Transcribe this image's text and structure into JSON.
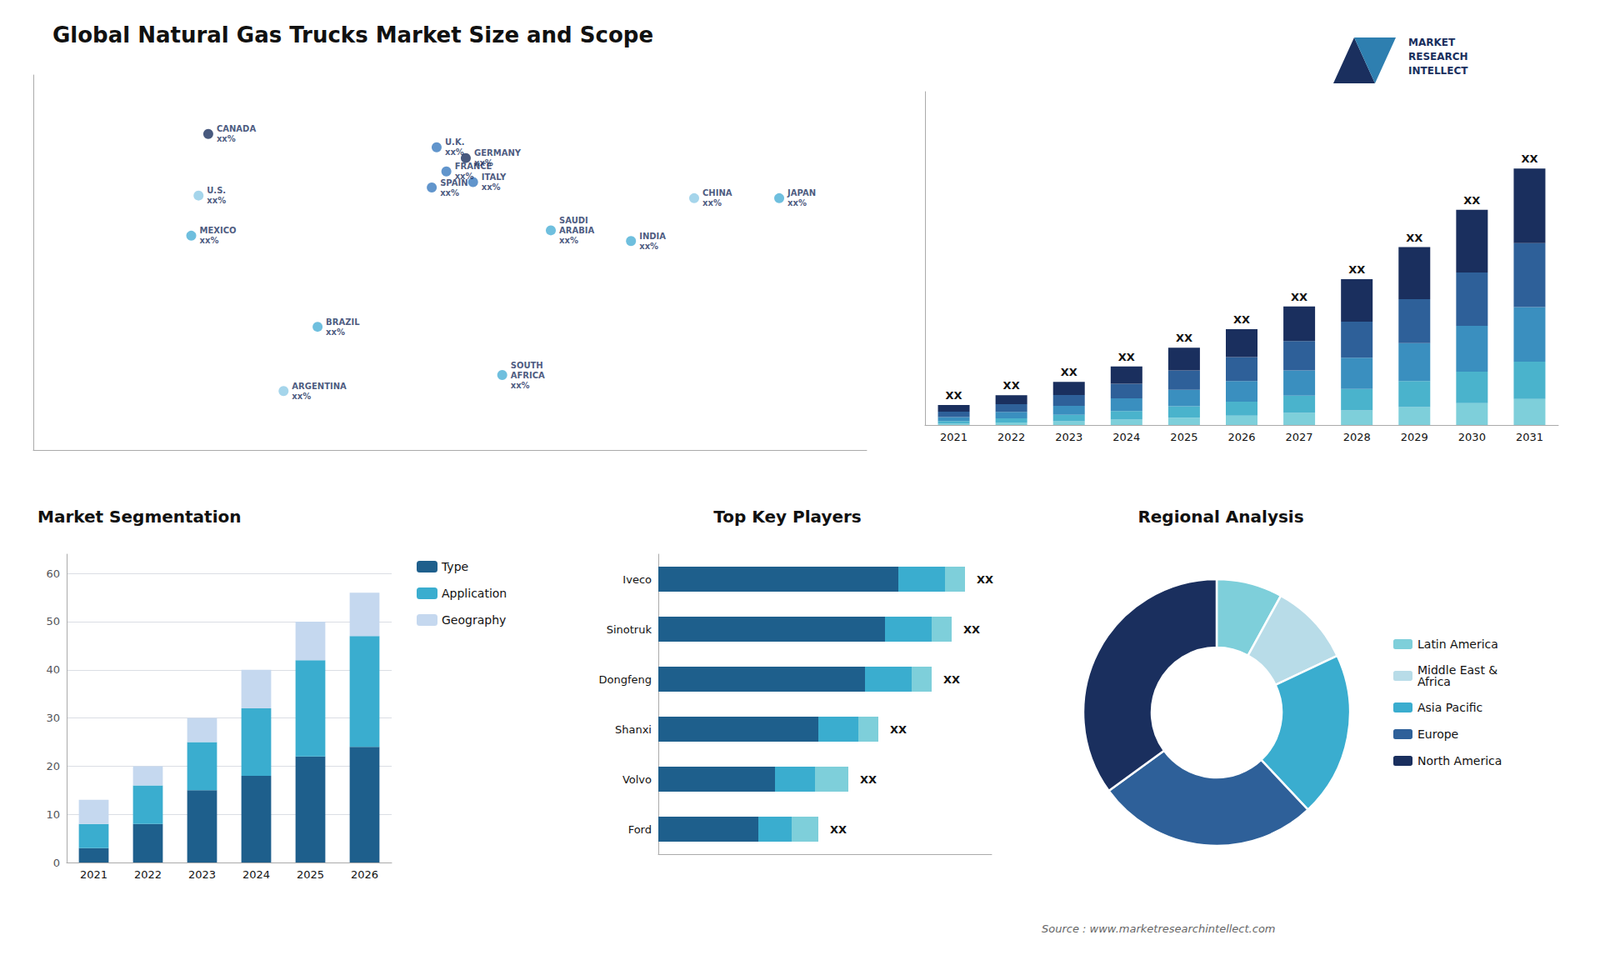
{
  "title": "Global Natural Gas Trucks Market Size and Scope",
  "annotations": [
    "MARKET\nRESEARCH\nINTELLECT",
    "Source : www.marketresearchintellect.com"
  ],
  "chart_data": [
    {
      "type": "scatter",
      "xlim": [
        -168,
        175
      ],
      "ylim": [
        -58,
        82
      ],
      "tick_labels": false,
      "grid": false,
      "annotations": [
        {
          "text": "U.S.\nxx%",
          "x": -100,
          "y": 37,
          "color": "#8ecae6"
        },
        {
          "text": "CANADA\nxx%",
          "x": -96,
          "y": 60,
          "color": "#1a2f5e"
        },
        {
          "text": "MEXICO\nxx%",
          "x": -103,
          "y": 22,
          "color": "#4bafd6"
        },
        {
          "text": "BRAZIL\nxx%",
          "x": -51,
          "y": -12,
          "color": "#4bafd6"
        },
        {
          "text": "ARGENTINA\nxx%",
          "x": -65,
          "y": -36,
          "color": "#8ecae6"
        },
        {
          "text": "U.K.\nxx%",
          "x": -2,
          "y": 55,
          "color": "#3a7abf"
        },
        {
          "text": "FRANCE\nxx%",
          "x": 2,
          "y": 46,
          "color": "#3a7abf"
        },
        {
          "text": "SPAIN\nxx%",
          "x": -4,
          "y": 40,
          "color": "#3a7abf"
        },
        {
          "text": "GERMANY\nxx%",
          "x": 10,
          "y": 51,
          "color": "#1a2f5e"
        },
        {
          "text": "ITALY\nxx%",
          "x": 13,
          "y": 42,
          "color": "#3a7abf"
        },
        {
          "text": "SAUDI\nARABIA\nxx%",
          "x": 45,
          "y": 24,
          "color": "#4bafd6"
        },
        {
          "text": "SOUTH\nAFRICA\nxx%",
          "x": 25,
          "y": -30,
          "color": "#4bafd6"
        },
        {
          "text": "INDIA\nxx%",
          "x": 78,
          "y": 20,
          "color": "#4bafd6"
        },
        {
          "text": "CHINA\nxx%",
          "x": 104,
          "y": 36,
          "color": "#8ecae6"
        },
        {
          "text": "JAPAN\nxx%",
          "x": 139,
          "y": 36,
          "color": "#4bafd6"
        }
      ]
    },
    {
      "type": "bar",
      "stacked": true,
      "categories": [
        "2021",
        "2022",
        "2023",
        "2024",
        "2025",
        "2026",
        "2027",
        "2028",
        "2029",
        "2030",
        "2031"
      ],
      "series": [
        {
          "color": "#7ecfda",
          "values": [
            0.1,
            0.18,
            0.28,
            0.4,
            0.55,
            0.7,
            0.9,
            1.1,
            1.35,
            1.65,
            1.95
          ]
        },
        {
          "color": "#4ab3cc",
          "values": [
            0.2,
            0.32,
            0.48,
            0.65,
            0.85,
            1.05,
            1.3,
            1.6,
            1.95,
            2.35,
            2.8
          ]
        },
        {
          "color": "#3a8fbf",
          "values": [
            0.3,
            0.48,
            0.68,
            0.95,
            1.25,
            1.55,
            1.9,
            2.35,
            2.85,
            3.45,
            4.1
          ]
        },
        {
          "color": "#2e6099",
          "values": [
            0.4,
            0.58,
            0.82,
            1.1,
            1.45,
            1.8,
            2.2,
            2.7,
            3.3,
            4.0,
            4.8
          ]
        },
        {
          "color": "#1a2f5e",
          "values": [
            0.5,
            0.68,
            0.97,
            1.3,
            1.7,
            2.1,
            2.6,
            3.2,
            3.9,
            4.7,
            5.6
          ],
          "value_labels": [
            "XX",
            "XX",
            "XX",
            "XX",
            "XX",
            "XX",
            "XX",
            "XX",
            "XX",
            "XX",
            "XX"
          ]
        }
      ],
      "ylim": [
        0,
        25.025
      ],
      "tick_labels": "x",
      "grid": false
    },
    {
      "type": "bar",
      "stacked": true,
      "title": "Market Segmentation",
      "categories": [
        "2021",
        "2022",
        "2023",
        "2024",
        "2025",
        "2026"
      ],
      "series": [
        {
          "name": "Type",
          "color": "#1e5f8c",
          "values": [
            3,
            8,
            15,
            18,
            22,
            24
          ]
        },
        {
          "name": "Application",
          "color": "#3aadcf",
          "values": [
            5,
            8,
            10,
            14,
            20,
            23
          ]
        },
        {
          "name": "Geography",
          "color": "#c5d8ef",
          "values": [
            5,
            4,
            5,
            8,
            8,
            9
          ]
        }
      ],
      "ylim": [
        0,
        64
      ],
      "yticks": [
        0,
        10,
        20,
        30,
        40,
        50,
        60
      ],
      "grid": true,
      "legend": "upper right"
    },
    {
      "type": "bar",
      "orientation": "horizontal",
      "stacked": true,
      "title": "Top Key Players",
      "categories": [
        "Iveco",
        "Sinotruk",
        "Dongfeng",
        "Shanxi",
        "Volvo",
        "Ford"
      ],
      "series": [
        {
          "color": "#1e5f8c",
          "values": [
            0.72,
            0.68,
            0.62,
            0.48,
            0.35,
            0.3
          ]
        },
        {
          "color": "#3aadcf",
          "values": [
            0.14,
            0.14,
            0.14,
            0.12,
            0.12,
            0.1
          ]
        },
        {
          "color": "#7ecfda",
          "values": [
            0.06,
            0.06,
            0.06,
            0.06,
            0.1,
            0.08
          ],
          "value_labels": [
            "XX",
            "XX",
            "XX",
            "XX",
            "XX",
            "XX"
          ]
        }
      ],
      "xlim": [
        0,
        1
      ],
      "tick_labels": "y",
      "grid": false
    },
    {
      "type": "pie",
      "title": "Regional Analysis",
      "categories": [
        "Latin America",
        "Middle East &\nAfrica",
        "Asia Pacific",
        "Europe",
        "North America"
      ],
      "values": [
        8,
        10,
        20,
        27,
        35
      ],
      "colors": [
        "#7ecfda",
        "#b8dce8",
        "#3aadcf",
        "#2e6099",
        "#1a2f5e"
      ],
      "legend": "right"
    }
  ]
}
